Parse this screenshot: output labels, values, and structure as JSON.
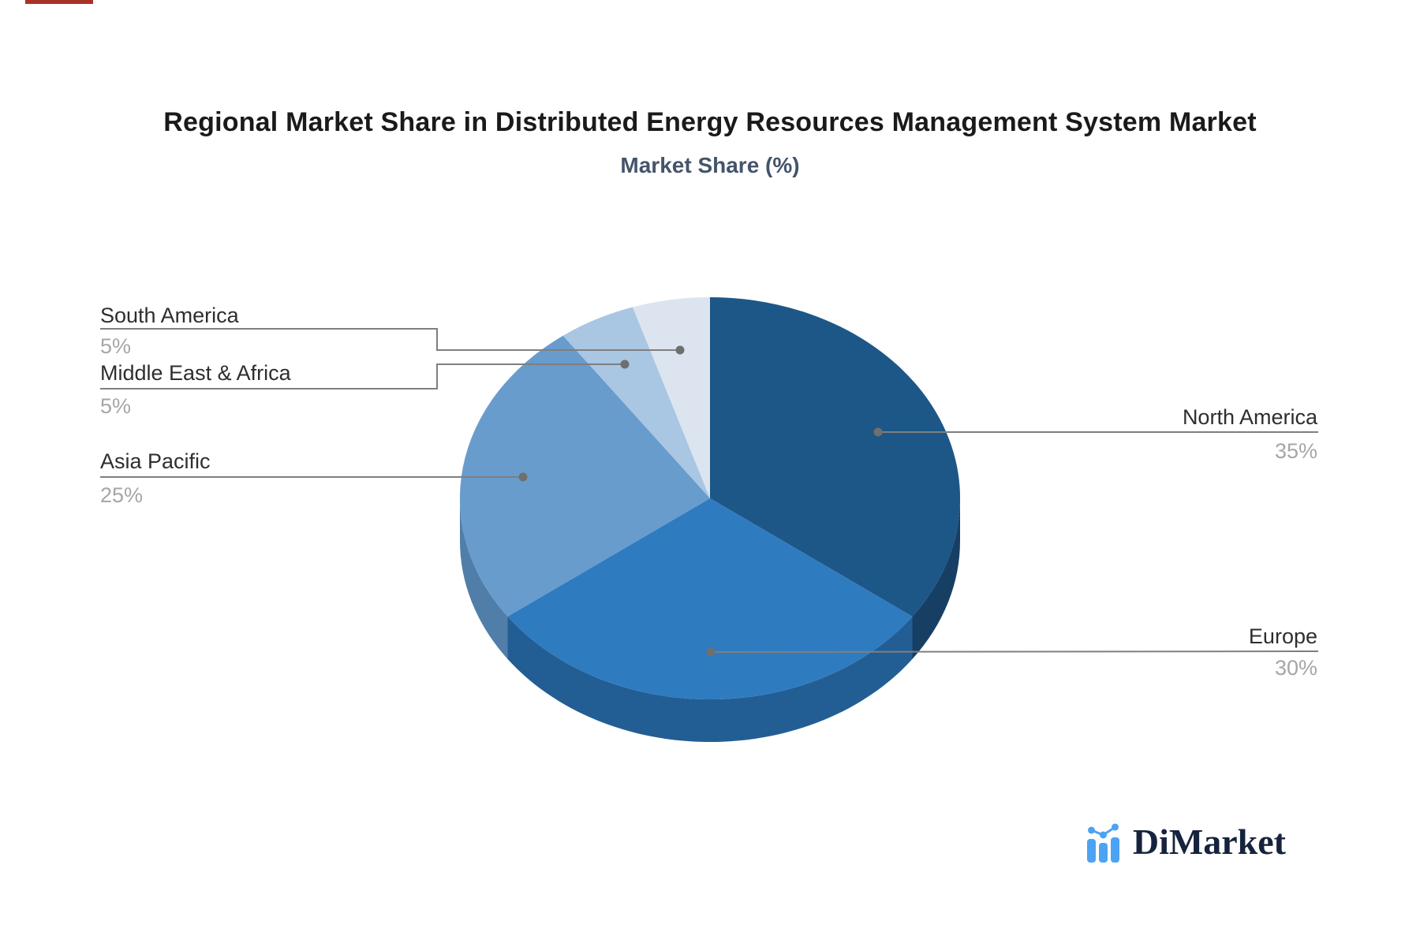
{
  "page": {
    "background": "#ffffff",
    "top_strip_color": "#A93226"
  },
  "header": {
    "title": "Regional Market Share in Distributed Energy Resources Management System Market",
    "subtitle": "Market Share (%)",
    "title_color": "#1a1a1a",
    "subtitle_color": "#44546A"
  },
  "chart_data": {
    "type": "pie",
    "title": "Regional Market Share in Distributed Energy Resources Management System Market",
    "subtitle": "Market Share (%)",
    "unit": "%",
    "effect": "3d",
    "start_angle_deg": 0,
    "direction": "clockwise",
    "legend_position": "none",
    "categories": [
      "North America",
      "Europe",
      "Asia Pacific",
      "Middle East & Africa",
      "South America"
    ],
    "values": [
      35,
      30,
      25,
      5,
      5
    ],
    "slices": [
      {
        "label": "North America",
        "value": 35,
        "value_label": "35%",
        "color": "#1D5787",
        "side_color": "#163F63",
        "label_side": "right"
      },
      {
        "label": "Europe",
        "value": 30,
        "value_label": "30%",
        "color": "#2F7BC0",
        "side_color": "#225E94",
        "label_side": "right"
      },
      {
        "label": "Asia Pacific",
        "value": 25,
        "value_label": "25%",
        "color": "#689CCD",
        "side_color": "#517EA8",
        "label_side": "left"
      },
      {
        "label": "Middle East & Africa",
        "value": 5,
        "value_label": "5%",
        "color": "#A9C6E3",
        "side_color": "#8CA8C4",
        "label_side": "left"
      },
      {
        "label": "South America",
        "value": 5,
        "value_label": "5%",
        "color": "#DCE4F0",
        "side_color": "#B9C6D6",
        "label_side": "left"
      }
    ],
    "leader_line_color": "#7f7f7f",
    "leader_dot_color": "#6f6f6f",
    "label_text_color": "#2e2e2e",
    "value_text_color": "#a6a6a6"
  },
  "logo": {
    "text": "DiMarket",
    "icon_color": "#4DA3F3",
    "text_color": "#16233D"
  }
}
